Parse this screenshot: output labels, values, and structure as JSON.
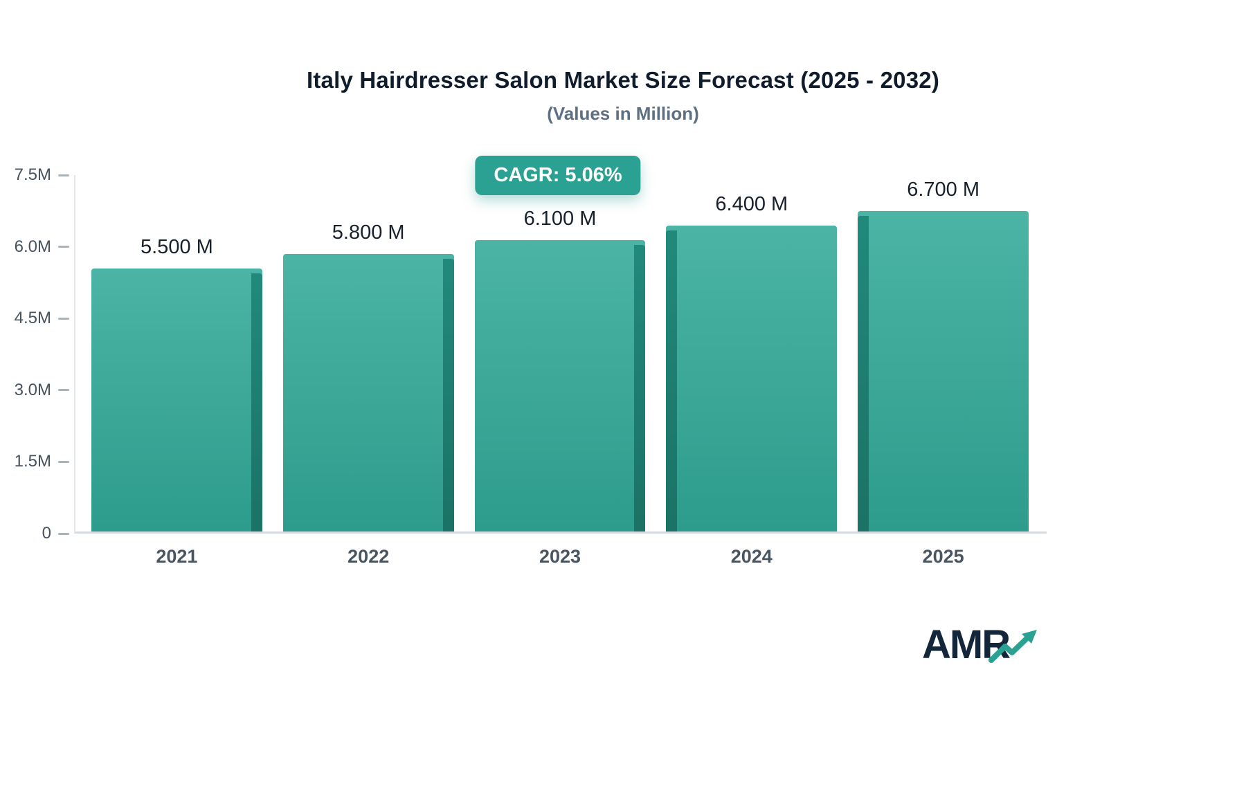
{
  "chart_data": {
    "type": "bar",
    "title": "Italy Hairdresser Salon Market Size Forecast (2025 - 2032)",
    "subtitle": "(Values in Million)",
    "cagr_label": "CAGR: 5.06%",
    "categories": [
      "2021",
      "2022",
      "2023",
      "2024",
      "2025"
    ],
    "values": [
      5.5,
      5.8,
      6.1,
      6.4,
      6.7
    ],
    "value_labels": [
      "5.500 M",
      "5.800 M",
      "6.100 M",
      "6.400 M",
      "6.700 M"
    ],
    "xlabel": "",
    "ylabel": "",
    "ylim": [
      0,
      7.5
    ],
    "y_ticks": [
      "7.5M",
      "6.0M",
      "4.5M",
      "3.0M",
      "1.5M",
      "0"
    ],
    "y_tick_values": [
      7.5,
      6.0,
      4.5,
      3.0,
      1.5,
      0
    ],
    "grid": false,
    "legend": "none",
    "bar_shadow_sides": [
      "right",
      "right",
      "right",
      "left",
      "left"
    ],
    "colors": {
      "accent": "#2aa192",
      "bar_top": "#4cb4a4",
      "bar_bottom": "#2d9c8c",
      "bar_edge": "#1b7265",
      "bar_edge_top": "#21897b",
      "title": "#101c2c",
      "subtitle": "#5d6f80",
      "axis_text": "#46525f",
      "xaxis_text": "#4a5562",
      "value_text": "#17202b",
      "axis_line": "#d7dbdf",
      "badge_text": "#ffffff",
      "logo_text": "#14263a"
    }
  },
  "logo": {
    "text": "AMR"
  }
}
